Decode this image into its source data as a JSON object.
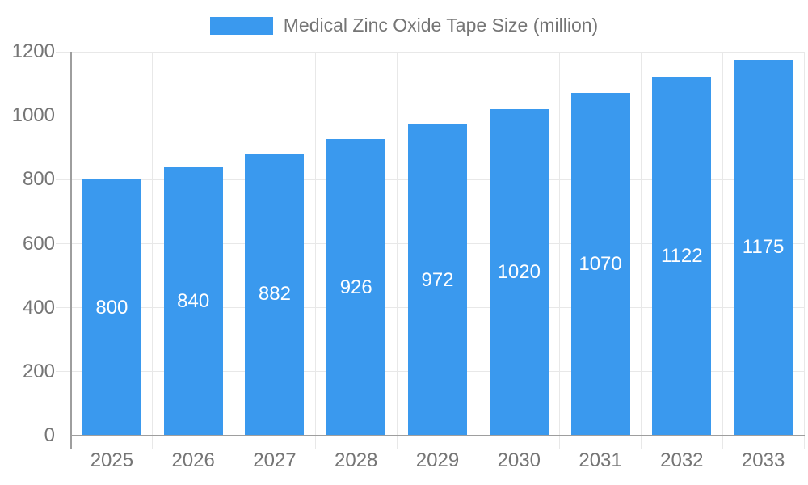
{
  "chart_data": {
    "type": "bar",
    "categories": [
      "2025",
      "2026",
      "2027",
      "2028",
      "2029",
      "2030",
      "2031",
      "2032",
      "2033"
    ],
    "series": [
      {
        "name": "Medical Zinc Oxide Tape Size (million)",
        "values": [
          800,
          840,
          882,
          926,
          972,
          1020,
          1070,
          1122,
          1175
        ]
      }
    ],
    "ylim": [
      0,
      1200
    ],
    "yticks": [
      0,
      200,
      400,
      600,
      800,
      1000,
      1200
    ],
    "grid": true,
    "legend_position": "top-center",
    "value_labels": "inside-center",
    "colors": {
      "bar": "#3A99EE",
      "grid": "#E8E8E8",
      "axis": "#9E9E9E",
      "text": "#757575",
      "value_label": "#FFFFFF",
      "background": "#FFFFFF"
    }
  }
}
